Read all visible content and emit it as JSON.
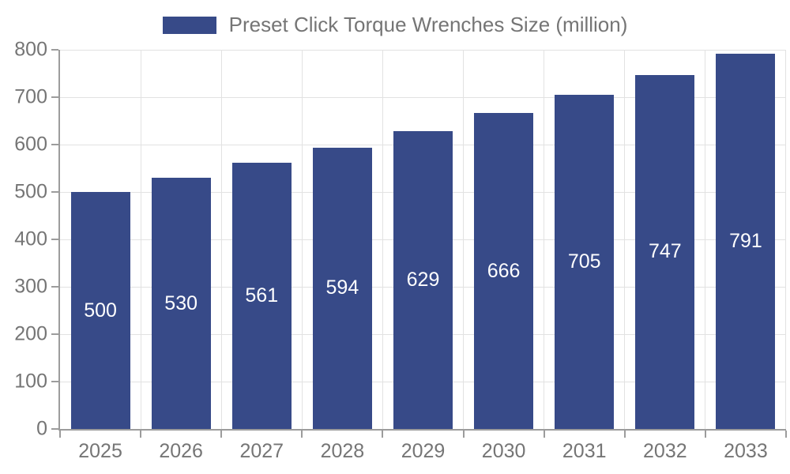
{
  "legend": {
    "label": "Preset Click Torque Wrenches Size (million)"
  },
  "chart_data": {
    "type": "bar",
    "title": "",
    "series_name": "Preset Click Torque Wrenches Size (million)",
    "categories": [
      "2025",
      "2026",
      "2027",
      "2028",
      "2029",
      "2030",
      "2031",
      "2032",
      "2033"
    ],
    "values": [
      500,
      530,
      561,
      594,
      629,
      666,
      705,
      747,
      791
    ],
    "value_labels": [
      "500",
      "530",
      "561",
      "594",
      "629",
      "666",
      "705",
      "747",
      "791"
    ],
    "xlabel": "",
    "ylabel": "",
    "ylim": [
      0,
      800
    ],
    "yticks": [
      0,
      100,
      200,
      300,
      400,
      500,
      600,
      700,
      800
    ],
    "grid": true,
    "legend_position": "top-center",
    "value_label_position": "inside-center"
  },
  "colors": {
    "bar": "#374a88",
    "axis_line": "#9c9c9c",
    "grid_line": "#e2e2e2",
    "tick_label": "#757575",
    "legend_text": "#757575",
    "value_label": "#ffffff",
    "background": "#ffffff"
  }
}
